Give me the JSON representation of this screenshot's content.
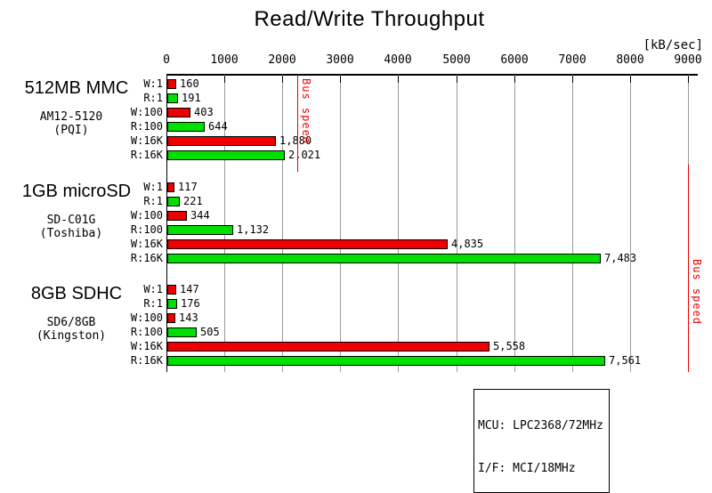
{
  "title": "Read/Write Throughput",
  "axis": {
    "unit_label": "[kB/sec]",
    "xlim": [
      0,
      9000
    ],
    "tick_interval": 1000,
    "tick_labels": [
      "0",
      "1000",
      "2000",
      "3000",
      "4000",
      "5000",
      "6000",
      "7000",
      "8000",
      "9000"
    ]
  },
  "colors": {
    "write_bar": "#ee0000",
    "read_bar": "#00e000",
    "bus_line": "#ee0000",
    "gridline": "#9a9a9a"
  },
  "chart_data": {
    "type": "bar",
    "orientation": "horizontal",
    "title": "Read/Write Throughput",
    "xlabel": "[kB/sec]",
    "xlim": [
      0,
      9000
    ],
    "grid": true,
    "row_labels": [
      "W:1",
      "R:1",
      "W:100",
      "R:100",
      "W:16K",
      "R:16K"
    ],
    "groups": [
      {
        "name": "512MB MMC",
        "model": "AM12-5120",
        "vendor": "(PQI)",
        "values": [
          160,
          191,
          403,
          644,
          1880,
          2021
        ],
        "value_labels": [
          "160",
          "191",
          "403",
          "644",
          "1,880",
          "2,021"
        ]
      },
      {
        "name": "1GB microSD",
        "model": "SD-C01G",
        "vendor": "(Toshiba)",
        "values": [
          117,
          221,
          344,
          1132,
          4835,
          7483
        ],
        "value_labels": [
          "117",
          "221",
          "344",
          "1,132",
          "4,835",
          "7,483"
        ]
      },
      {
        "name": "8GB SDHC",
        "model": "SD6/8GB",
        "vendor": "(Kingston)",
        "values": [
          147,
          176,
          143,
          505,
          5558,
          7561
        ],
        "value_labels": [
          "147",
          "176",
          "143",
          "505",
          "5,558",
          "7,561"
        ]
      }
    ],
    "series_colors": {
      "write": "#ee0000",
      "read": "#00e000"
    },
    "bus_speed_lines": [
      {
        "label": "Bus speed",
        "value": 2250,
        "group_span": [
          0,
          0
        ]
      },
      {
        "label": "Bus speed",
        "value": 9000,
        "group_span": [
          1,
          2
        ]
      }
    ]
  },
  "info_box": {
    "line1": "MCU: LPC2368/72MHz",
    "line2": "I/F: MCI/18MHz"
  }
}
